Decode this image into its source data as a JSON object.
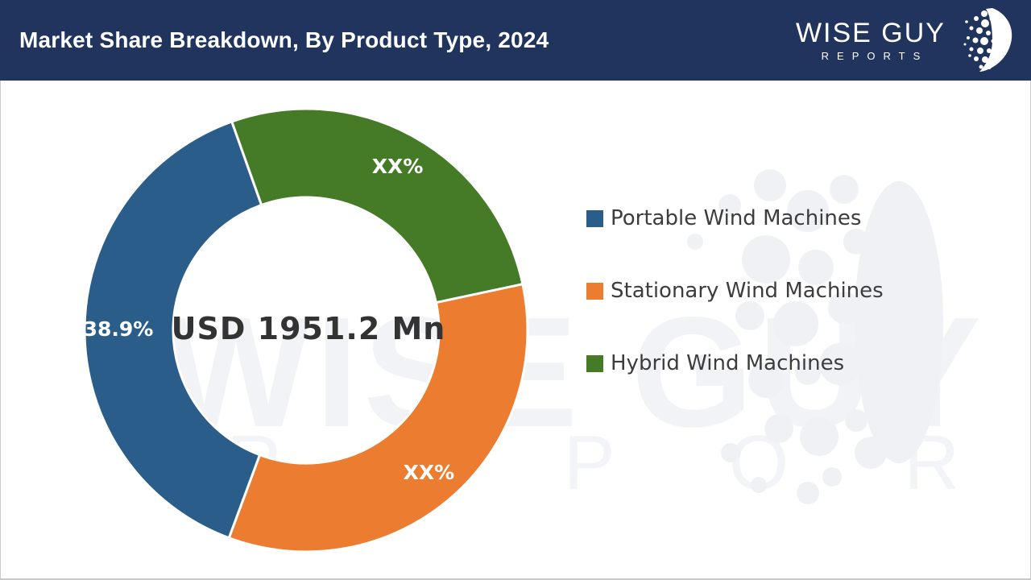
{
  "header": {
    "title": "Market Share Breakdown, By Product Type, 2024",
    "logo": {
      "line1": "WISE GUY",
      "line2": "REPORTS"
    }
  },
  "chart_data": {
    "type": "pie",
    "donut": true,
    "title": "Market Share Breakdown, By Product Type, 2024",
    "center_label": "USD 1951.2 Mn",
    "start_angle_deg": 109.6,
    "direction": "counterclockwise",
    "legend_position": "right",
    "categories": [
      "Portable Wind Machines",
      "Stationary Wind Machines",
      "Hybrid Wind Machines"
    ],
    "values_percent": [
      38.9,
      34.0,
      27.1
    ],
    "values_estimated_from_arcs": [
      false,
      true,
      true
    ],
    "display_labels": [
      "38.9%",
      "XX%",
      "XX%"
    ],
    "colors": [
      "#2b5d8a",
      "#ec7c30",
      "#457a27"
    ]
  },
  "legend": {
    "items": [
      {
        "label": "Portable Wind Machines",
        "color": "#2b5d8a"
      },
      {
        "label": "Stationary Wind Machines",
        "color": "#ec7c30"
      },
      {
        "label": "Hybrid Wind Machines",
        "color": "#457a27"
      }
    ]
  },
  "watermark": {
    "line1": "WISE GUY",
    "line2": "R E P O R T S"
  },
  "colors": {
    "header_bg": "#21345e",
    "border": "#cccccc",
    "center_text": "#333333",
    "legend_text": "#3d3d3d"
  }
}
